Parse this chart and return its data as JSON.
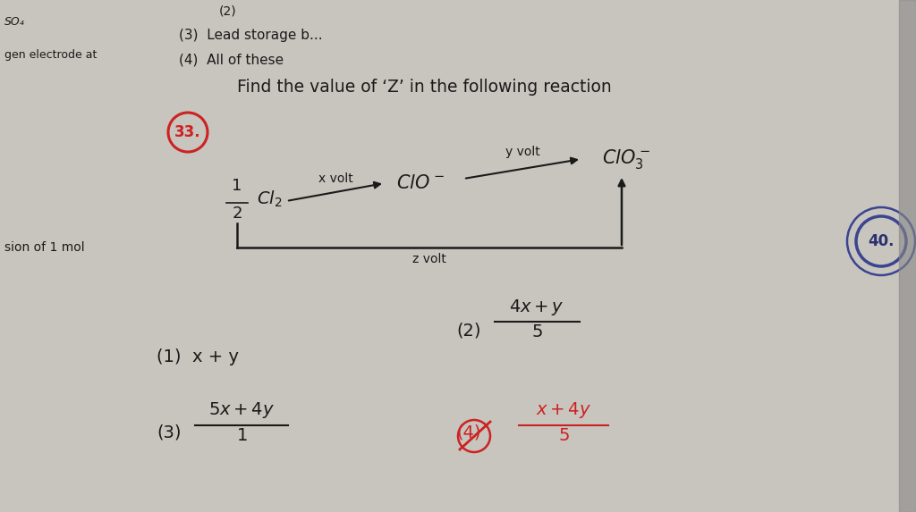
{
  "background_color": "#c8c5be",
  "title_question": "Find the value of ‘Z’ in the following reaction",
  "question_number": "33.",
  "arrow1_label": "x volt",
  "arrow2_label": "y volt",
  "arrow3_label": "z volt",
  "prev_line1": "(3)  Lead storage b...",
  "prev_line2": "(4)  All of these",
  "left_text1": "SO₄",
  "left_text2": "gen electrode at",
  "left_text3": "sion of 1 mol",
  "right_label": "40.",
  "number_circle_color": "#cc2222",
  "text_color": "#1a1a1a",
  "opt4_color": "#cc2222"
}
